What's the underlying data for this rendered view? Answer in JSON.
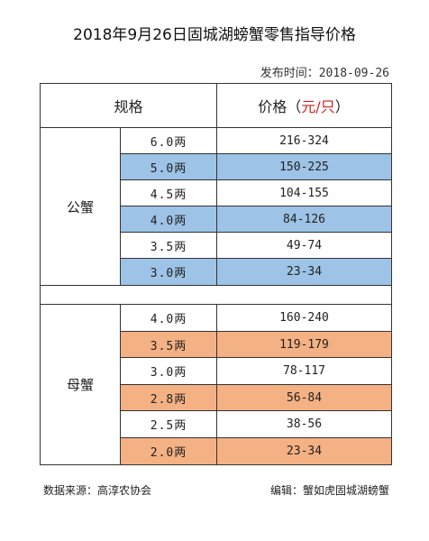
{
  "title": "2018年9月26日固城湖螃蟹零售指导价格",
  "publish_label": "发布时间：",
  "publish_date": "2018-09-26",
  "header": {
    "spec": "规格",
    "price_prefix": "价格（",
    "price_unit": "元/只",
    "price_suffix": "）"
  },
  "groups": [
    {
      "name": "公蟹",
      "rows": [
        {
          "spec": "6.0两",
          "price": "216-324",
          "shade": "none"
        },
        {
          "spec": "5.0两",
          "price": "150-225",
          "shade": "blue"
        },
        {
          "spec": "4.5两",
          "price": "104-155",
          "shade": "none"
        },
        {
          "spec": "4.0两",
          "price": "84-126",
          "shade": "blue"
        },
        {
          "spec": "3.5两",
          "price": "49-74",
          "shade": "none"
        },
        {
          "spec": "3.0两",
          "price": "23-34",
          "shade": "blue"
        }
      ]
    },
    {
      "name": "母蟹",
      "rows": [
        {
          "spec": "4.0两",
          "price": "160-240",
          "shade": "none"
        },
        {
          "spec": "3.5两",
          "price": "119-179",
          "shade": "orange"
        },
        {
          "spec": "3.0两",
          "price": "78-117",
          "shade": "none"
        },
        {
          "spec": "2.8两",
          "price": "56-84",
          "shade": "orange"
        },
        {
          "spec": "2.5两",
          "price": "38-56",
          "shade": "none"
        },
        {
          "spec": "2.0两",
          "price": "23-34",
          "shade": "orange"
        }
      ]
    }
  ],
  "colors": {
    "blue": "#9dc3e6",
    "orange": "#f4b183",
    "unit_red": "#d21e1e"
  },
  "footer": {
    "source": "数据来源：高淳农协会",
    "editor": "编辑：蟹如虎固城湖螃蟹"
  }
}
